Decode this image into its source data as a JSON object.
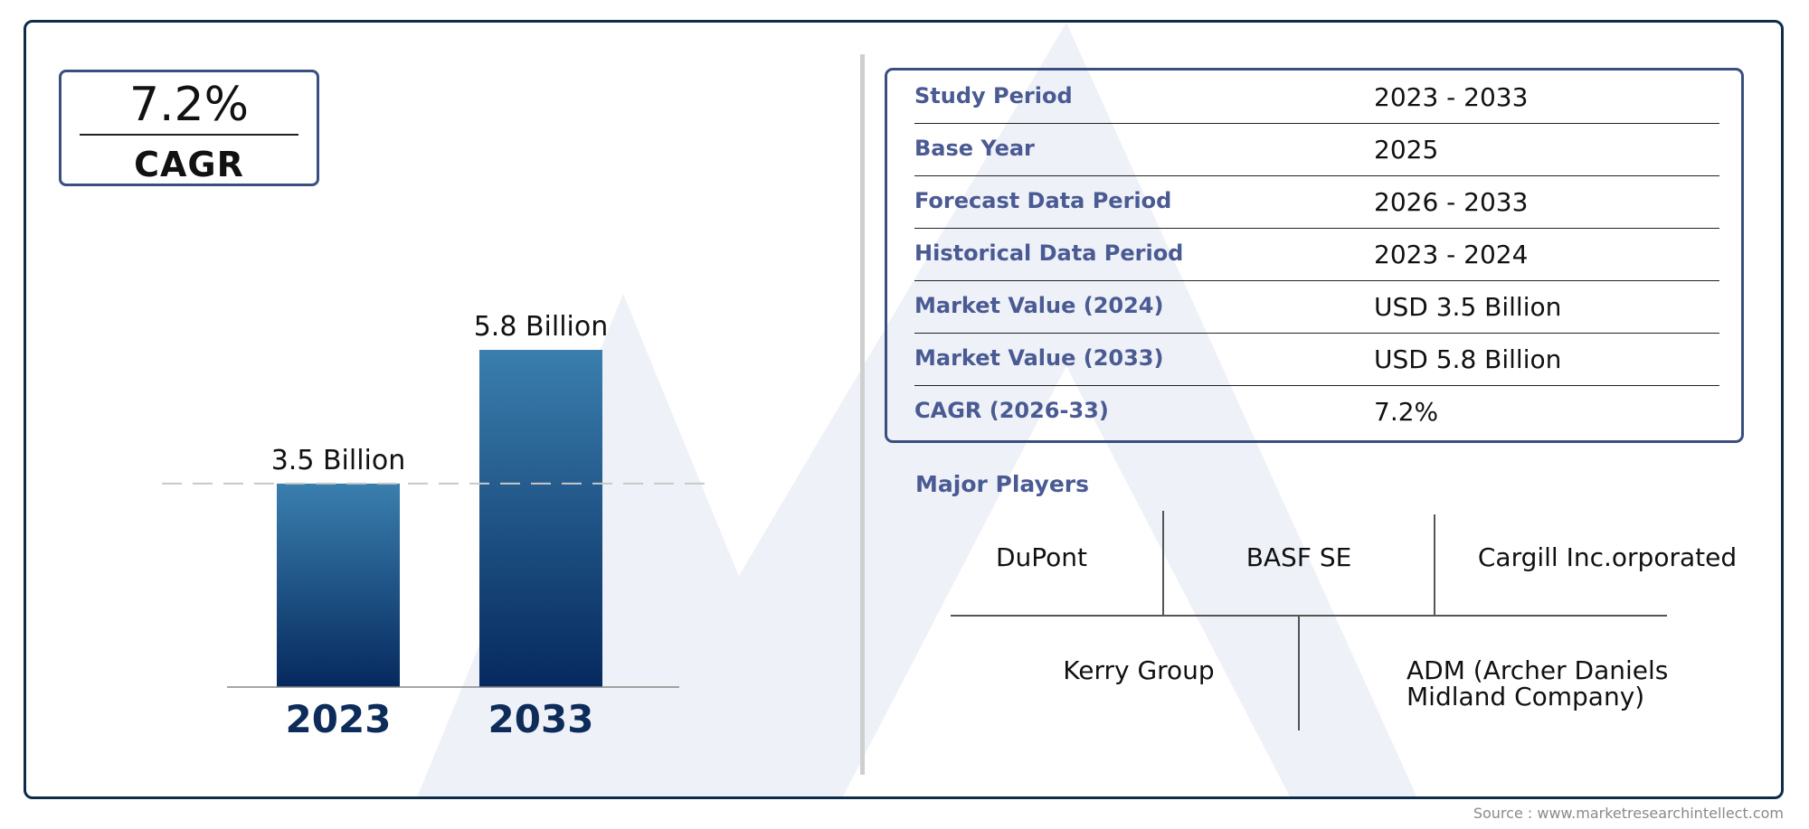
{
  "cagr": {
    "value": "7.2%",
    "label": "CAGR"
  },
  "chart_data": {
    "type": "bar",
    "categories": [
      "2023",
      "2033"
    ],
    "values": [
      3.5,
      5.8
    ],
    "data_labels": [
      "3.5 Billion",
      "5.8 Billion"
    ],
    "reference_line": 3.5,
    "ylim": [
      0,
      6.5
    ],
    "colors": {
      "bar_top": "#3a7fae",
      "bar_bottom": "#06295e",
      "category_label": "#0d2c5a"
    }
  },
  "info": {
    "rows": [
      {
        "label": "Study Period",
        "value": "2023 - 2033"
      },
      {
        "label": "Base Year",
        "value": "2025"
      },
      {
        "label": "Forecast Data Period",
        "value": "2026 - 2033"
      },
      {
        "label": "Historical Data Period",
        "value": "2023 - 2024"
      },
      {
        "label": "Market Value (2024)",
        "value": "USD 3.5 Billion"
      },
      {
        "label": "Market Value (2033)",
        "value": "USD 5.8 Billion"
      },
      {
        "label": "CAGR (2026-33)",
        "value": "7.2%"
      }
    ]
  },
  "players": {
    "title": "Major Players",
    "items": [
      "DuPont",
      "BASF SE",
      "Cargill Inc.orporated",
      "Kerry Group",
      "ADM (Archer Daniels Midland Company)"
    ]
  },
  "source": "Source : www.marketresearchintellect.com",
  "colors": {
    "frame": "#0d2c4a",
    "box_border": "#3a4f80",
    "label_text": "#4a5a93",
    "watermark": "#eef1f7"
  }
}
